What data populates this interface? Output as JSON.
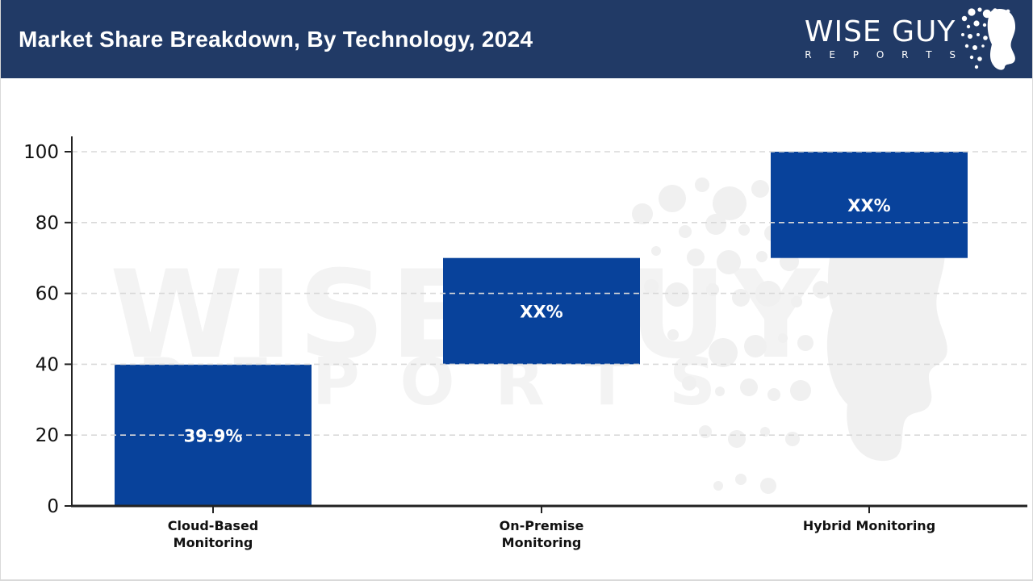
{
  "header": {
    "title": "Market Share Breakdown, By Technology, 2024",
    "background_color": "#213a66",
    "title_color": "#ffffff"
  },
  "logo": {
    "line1": "WISE GUY",
    "line2": "R E P O R T S"
  },
  "watermark": {
    "line1": "WISE GUY",
    "line2": "R E P O R T S",
    "color": "#f3f3f3"
  },
  "chart_data": {
    "type": "bar",
    "subtype": "floating-range-bars",
    "title": "Market Share Breakdown, By Technology, 2024",
    "categories": [
      "Cloud-Based Monitoring",
      "On-Premise Monitoring",
      "Hybrid Monitoring"
    ],
    "category_label_lines": [
      [
        "Cloud-Based",
        "Monitoring"
      ],
      [
        "On-Premise",
        "Monitoring"
      ],
      [
        "Hybrid Monitoring"
      ]
    ],
    "bars": [
      {
        "category": "Cloud-Based Monitoring",
        "from": 0,
        "to": 39.9,
        "label": "39.9%"
      },
      {
        "category": "On-Premise Monitoring",
        "from": 40,
        "to": 70,
        "label": "XX%"
      },
      {
        "category": "Hybrid Monitoring",
        "from": 70,
        "to": 100,
        "label": "XX%"
      }
    ],
    "xlabel": "",
    "ylabel": "",
    "ylim": [
      0,
      105
    ],
    "yticks": [
      0,
      20,
      40,
      60,
      80,
      100
    ],
    "grid": "horizontal-dashed",
    "grid_color": "#d9d9d9",
    "legend": "none",
    "bar_color": "#08429b",
    "bar_label_color": "#ffffff",
    "axis_color": "#222222",
    "tick_label_color": "#111111"
  }
}
